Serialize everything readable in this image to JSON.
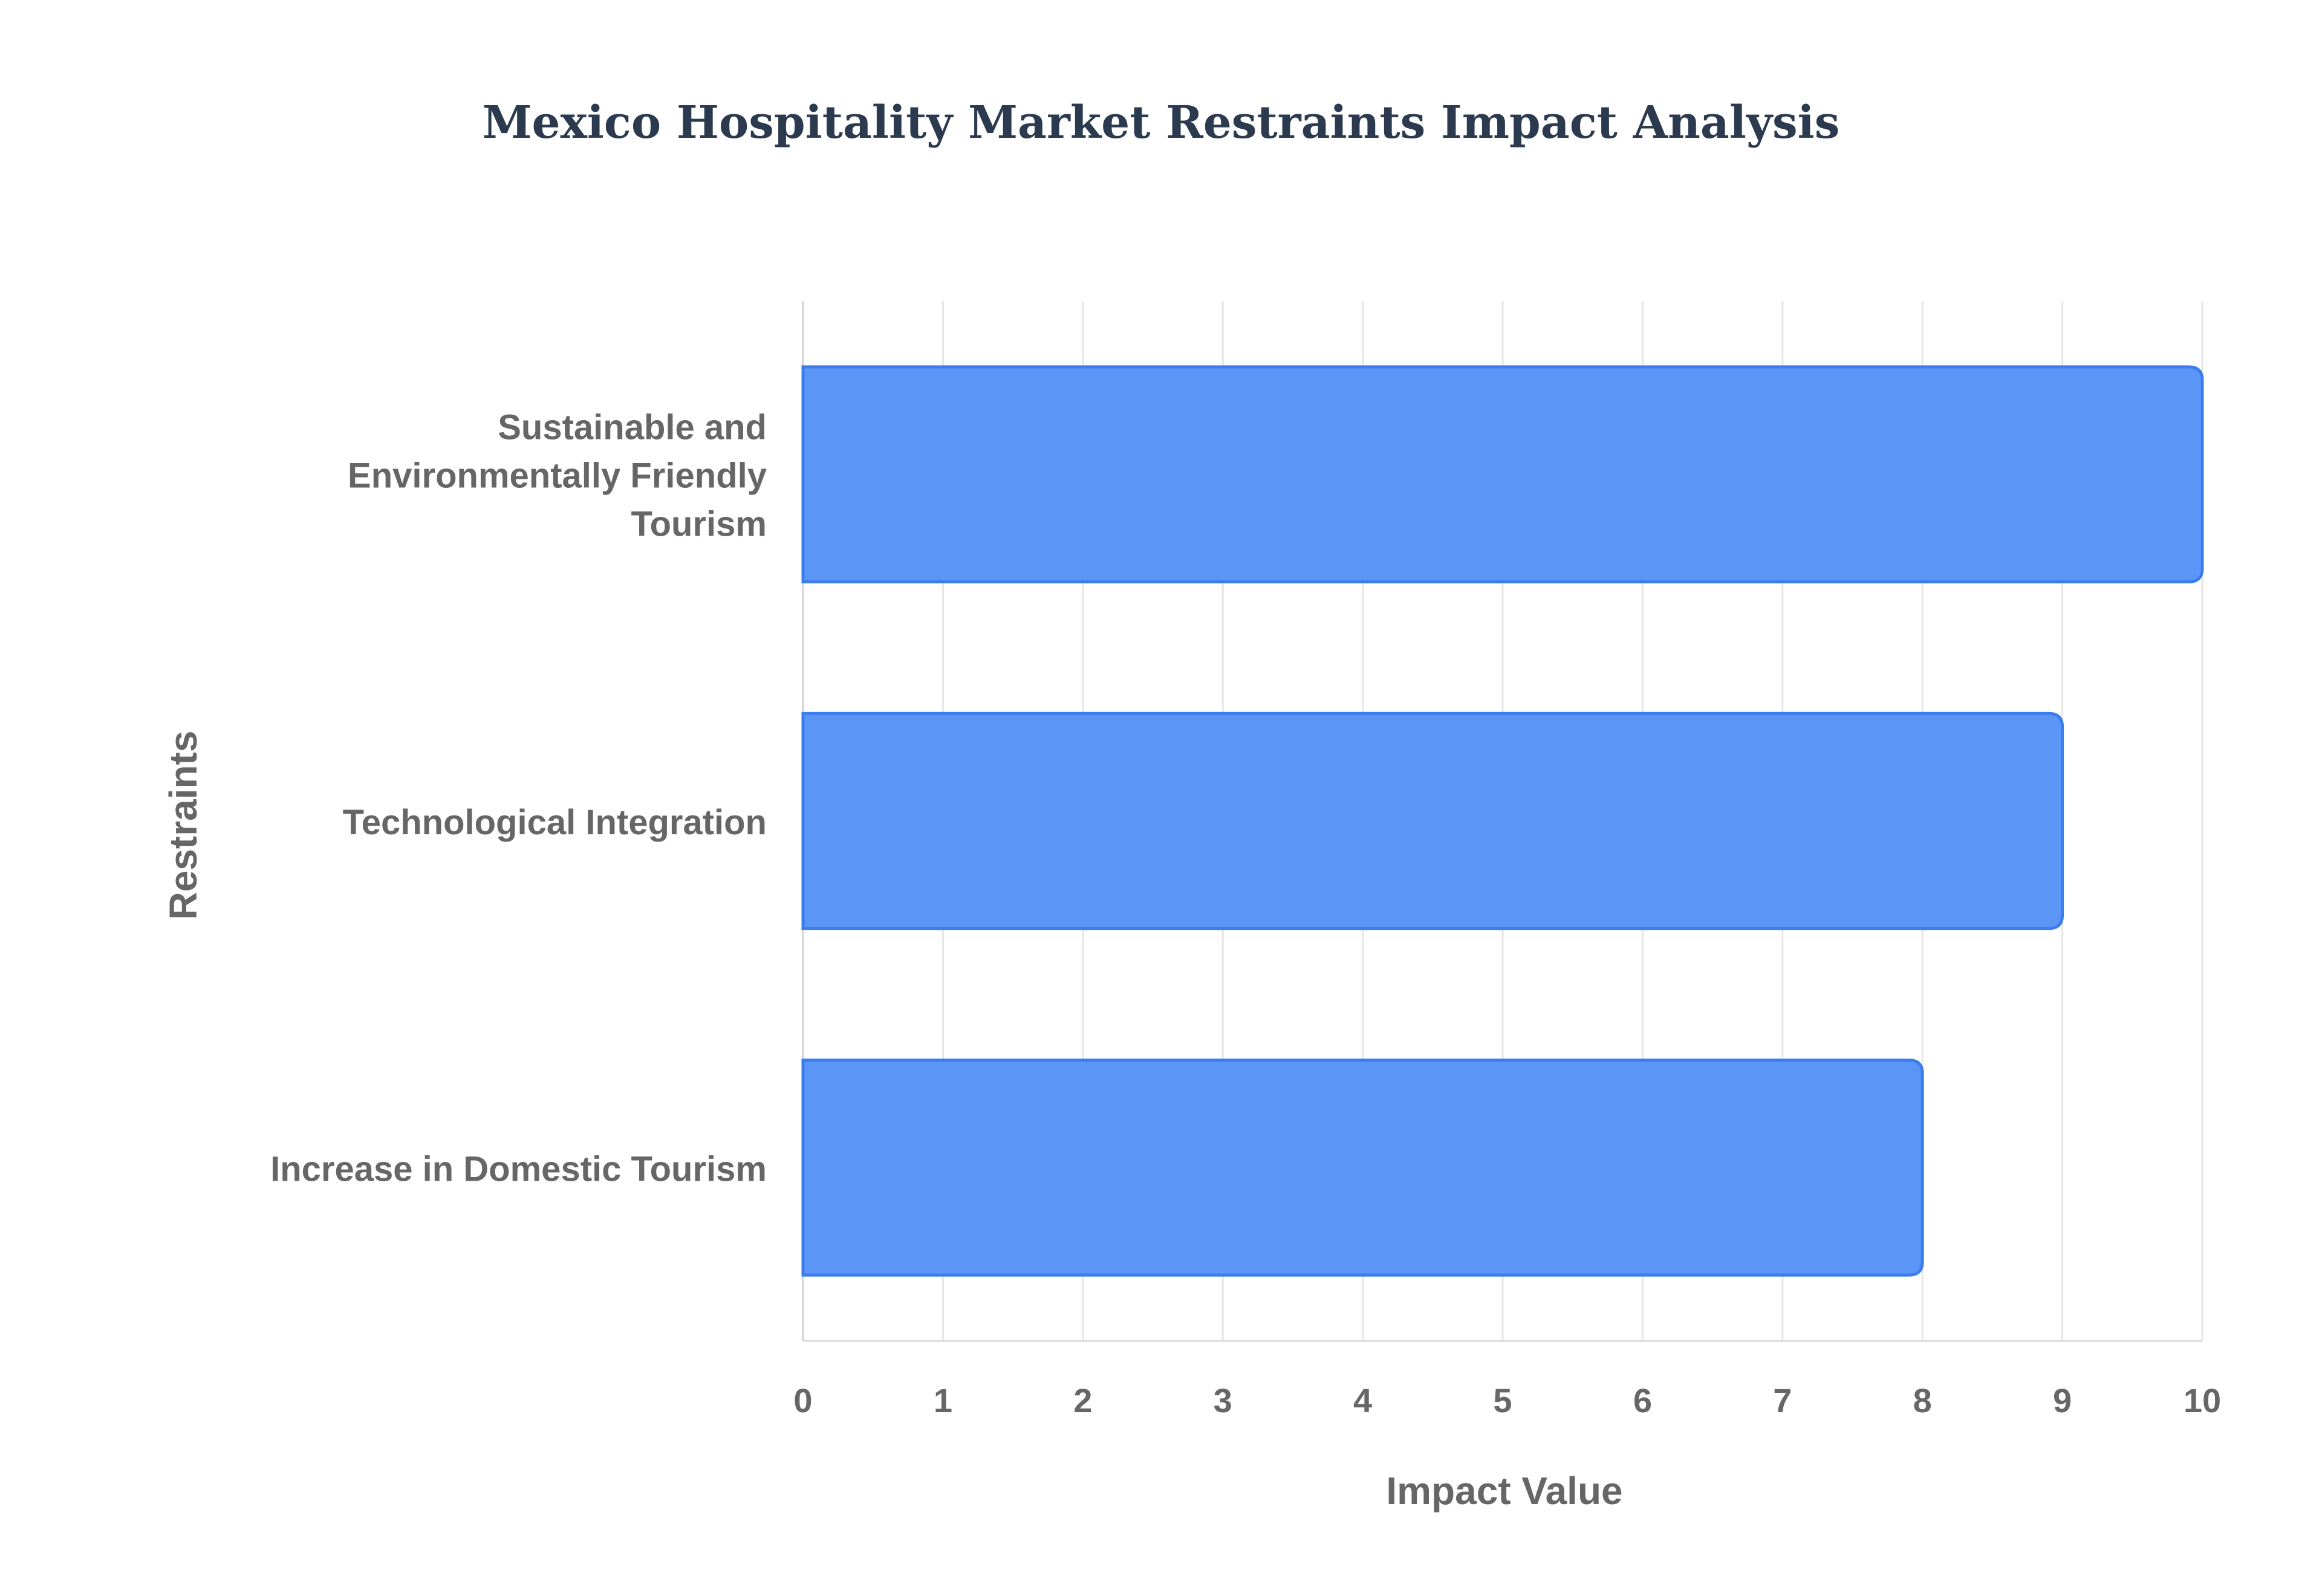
{
  "chart_data": {
    "type": "bar",
    "orientation": "horizontal",
    "title": "Mexico Hospitality Market Restraints Impact Analysis",
    "xlabel": "Impact Value",
    "ylabel": "Restraints",
    "categories": [
      [
        "Sustainable and",
        "Environmentally Friendly",
        "Tourism"
      ],
      [
        "Technological Integration"
      ],
      [
        "Increase in Domestic Tourism"
      ]
    ],
    "values": [
      10,
      9,
      8
    ],
    "xlim": [
      0,
      10
    ],
    "x_ticks": [
      "0",
      "1",
      "2",
      "3",
      "4",
      "5",
      "6",
      "7",
      "8",
      "9",
      "10"
    ],
    "grid": true,
    "legend": "none",
    "colors": {
      "bar_fill": "#5b95f5",
      "bar_stroke": "#3b7ded",
      "title": "#2b3a4e",
      "axis_text": "#666666",
      "grid": "#e6e6e6",
      "axis_line": "#d9d9d9"
    }
  }
}
